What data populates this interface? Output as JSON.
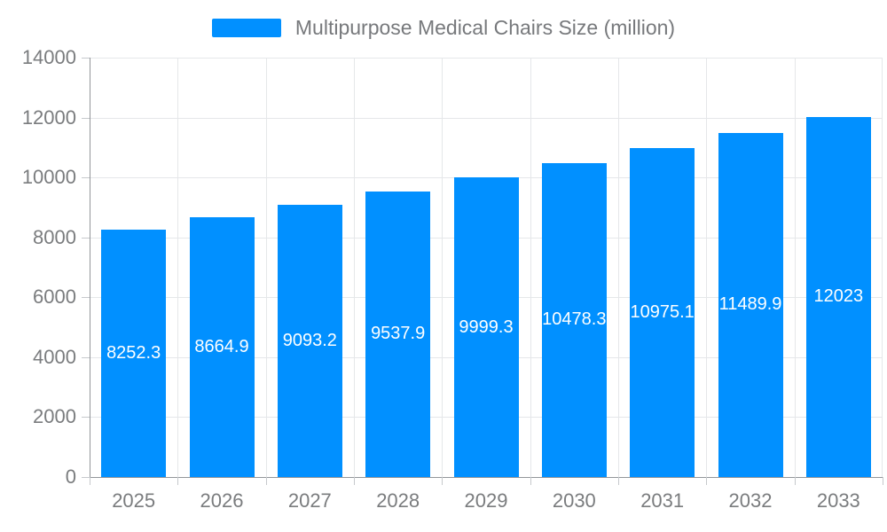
{
  "legend": {
    "label": "Multipurpose Medical Chairs Size (million)",
    "swatch_color": "#0190ff"
  },
  "chart_data": {
    "type": "bar",
    "title": "Multipurpose Medical Chairs Size (million)",
    "categories": [
      "2025",
      "2026",
      "2027",
      "2028",
      "2029",
      "2030",
      "2031",
      "2032",
      "2033"
    ],
    "series": [
      {
        "name": "Multipurpose Medical Chairs Size (million)",
        "values": [
          8252.3,
          8664.9,
          9093.2,
          9537.9,
          9999.3,
          10478.3,
          10975.1,
          11489.9,
          12023
        ],
        "data_labels": [
          "8252.3",
          "8664.9",
          "9093.2",
          "9537.9",
          "9999.3",
          "10478.3",
          "10975.1",
          "11489.9",
          "12023"
        ]
      }
    ],
    "xlabel": "",
    "ylabel": "",
    "ylim": [
      0,
      14000
    ],
    "yticks": [
      0,
      2000,
      4000,
      6000,
      8000,
      10000,
      12000,
      14000
    ],
    "grid": true,
    "legend_position": "top",
    "colors": {
      "bar": "#0190ff",
      "bar_label_text": "#ffffff",
      "axis_line": "#93969a",
      "tick": "#c6c9cc",
      "gridline": "#e5e7e9",
      "axis_text": "#7a7c7e",
      "legend_text": "#77797c"
    }
  }
}
